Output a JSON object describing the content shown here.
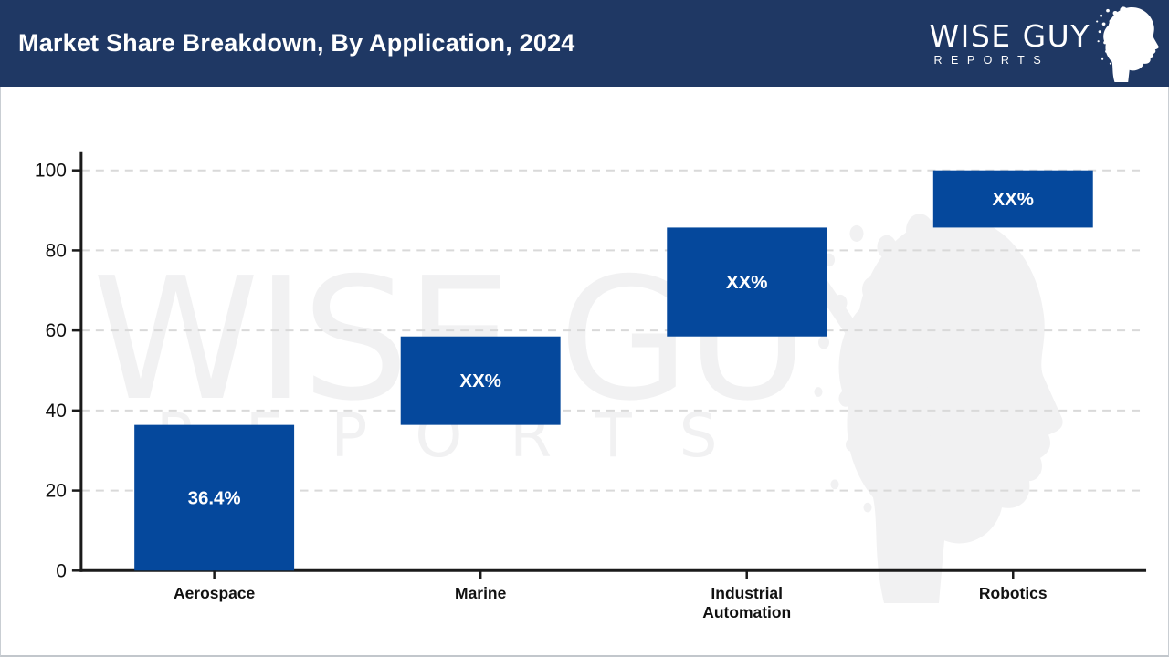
{
  "header": {
    "title": "Market Share Breakdown, By Application, 2024",
    "logo": {
      "line1": "WISE GUY",
      "line2": "REPORTS"
    }
  },
  "watermark": {
    "line1": "WISE GUY",
    "line2": "REPORTS"
  },
  "chart_data": {
    "type": "bar",
    "subtype": "waterfall",
    "title": "Market Share Breakdown, By Application, 2024",
    "categories": [
      "Aerospace",
      "Marine",
      "Industrial Automation",
      "Robotics"
    ],
    "series": [
      {
        "name": "Market Share (%)",
        "segments": [
          {
            "category": "Aerospace",
            "lines": [
              "Aerospace"
            ],
            "start": 0,
            "end": 36.4,
            "label": "36.4%"
          },
          {
            "category": "Marine",
            "lines": [
              "Marine"
            ],
            "start": 36.4,
            "end": 58.5,
            "label": "XX%"
          },
          {
            "category": "Industrial Automation",
            "lines": [
              "Industrial",
              "Automation"
            ],
            "start": 58.5,
            "end": 85.7,
            "label": "XX%"
          },
          {
            "category": "Robotics",
            "lines": [
              "Robotics"
            ],
            "start": 85.7,
            "end": 100,
            "label": "XX%"
          }
        ]
      }
    ],
    "xlabel": "",
    "ylabel": "",
    "ylim": [
      0,
      100
    ],
    "yticks": [
      0,
      20,
      40,
      60,
      80,
      100
    ],
    "grid": "horizontal-dashed",
    "legend": "none",
    "bar_color": "#05489c",
    "label_color": "#ffffff"
  },
  "colors": {
    "header_bg": "#1f3864",
    "header_text": "#ffffff",
    "bar": "#05489c",
    "watermark": "#f1f1f2",
    "grid": "#d9d9d9",
    "axis": "#1a1a1a",
    "tick_text": "#111111"
  }
}
